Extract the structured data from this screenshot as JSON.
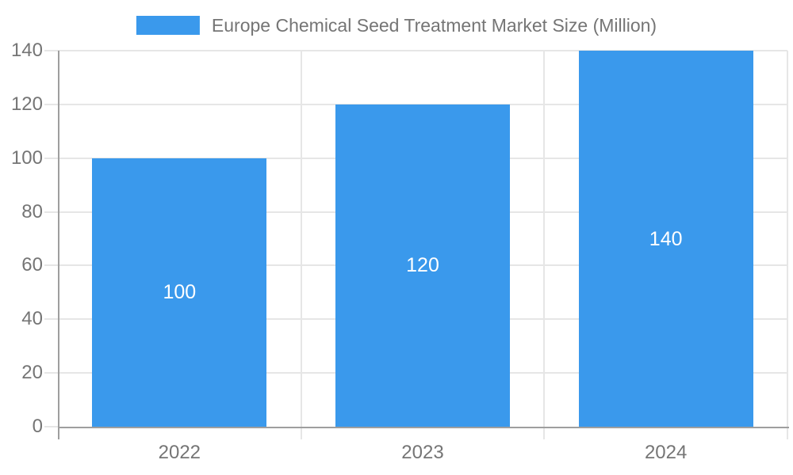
{
  "chart_data": {
    "type": "bar",
    "title": "Europe Chemical Seed Treatment Market Size (Million)",
    "categories": [
      "2022",
      "2023",
      "2024"
    ],
    "values": [
      100,
      120,
      140
    ],
    "bar_value_labels": [
      "100",
      "120",
      "140"
    ],
    "xlabel": "",
    "ylabel": "",
    "ylim": [
      0,
      140
    ],
    "yticks": [
      0,
      20,
      40,
      60,
      80,
      100,
      120,
      140
    ],
    "grid": "on",
    "legend": {
      "position": "top-center",
      "label": "Europe Chemical Seed Treatment Market Size (Million)"
    },
    "colors": {
      "bar": "#3a99ec",
      "bar_label": "#ffffff",
      "grid": "#e6e6e6",
      "axis": "#9e9e9e",
      "text": "#757575",
      "background": "#ffffff"
    }
  }
}
